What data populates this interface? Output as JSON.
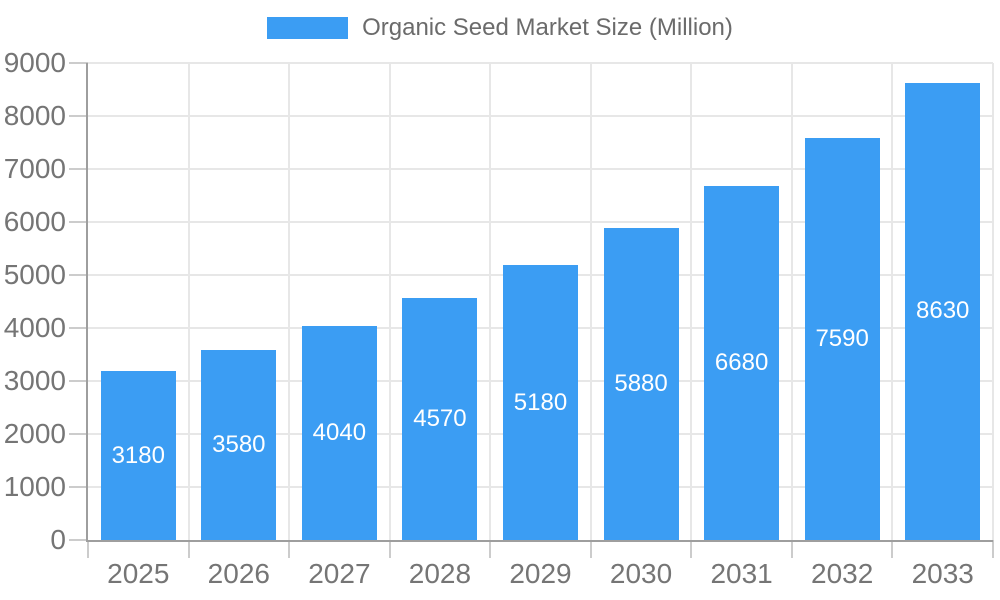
{
  "legend": {
    "label": "Organic Seed Market Size (Million)"
  },
  "chart_data": {
    "type": "bar",
    "title": "Organic Seed Market Size (Million)",
    "series_name": "Organic Seed Market Size (Million)",
    "categories": [
      "2025",
      "2026",
      "2027",
      "2028",
      "2029",
      "2030",
      "2031",
      "2032",
      "2033"
    ],
    "values": [
      3180,
      3580,
      4040,
      4570,
      5180,
      5880,
      6680,
      7590,
      8630
    ],
    "xlabel": "",
    "ylabel": "",
    "ylim": [
      0,
      9000
    ],
    "ytick_step": 1000,
    "yticks": [
      0,
      1000,
      2000,
      3000,
      4000,
      5000,
      6000,
      7000,
      8000,
      9000
    ],
    "grid": "horizontal and vertical light gray gridlines",
    "legend_position": "top-center",
    "value_labels": "white, centered inside bars",
    "colors": {
      "bar": "#3b9df3",
      "value_label": "#ffffff",
      "axis_text": "#757575",
      "legend_text": "#6b6b6b",
      "gridline": "#e7e7e7",
      "axis_line": "#9e9e9e",
      "tick": "#cccccc",
      "background": "#ffffff"
    }
  }
}
